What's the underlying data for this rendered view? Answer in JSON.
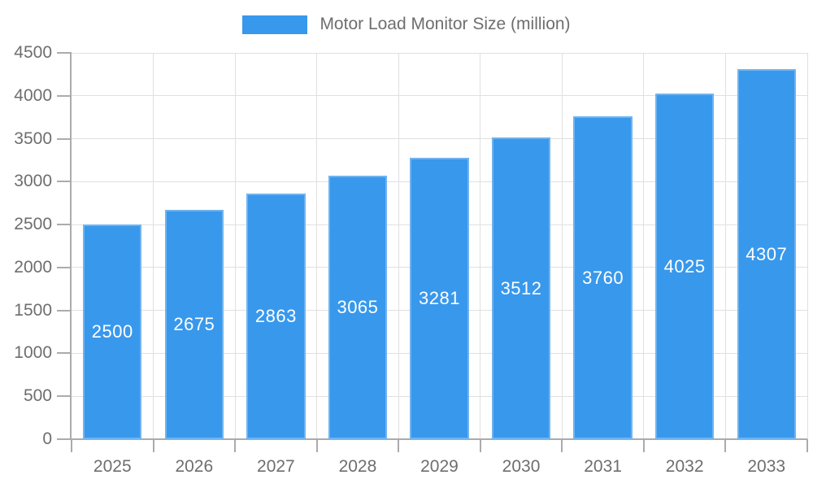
{
  "legend": {
    "label": "Motor Load Monitor Size (million)",
    "swatch_color": "#3898EC"
  },
  "chart_data": {
    "type": "bar",
    "title": "Motor Load Monitor Size (million)",
    "categories": [
      "2025",
      "2026",
      "2027",
      "2028",
      "2029",
      "2030",
      "2031",
      "2032",
      "2033"
    ],
    "series": [
      {
        "name": "Motor Load Monitor Size (million)",
        "values": [
          2500,
          2675,
          2863,
          3065,
          3281,
          3512,
          3760,
          4025,
          4307
        ]
      }
    ],
    "value_labels_shown": true,
    "xlabel": "",
    "ylabel": "",
    "ylim": [
      0,
      4500
    ],
    "yticks": [
      0,
      500,
      1000,
      1500,
      2000,
      2500,
      3000,
      3500,
      4000,
      4500
    ],
    "grid": true,
    "legend_position": "top",
    "colors": {
      "bar_fill": "#3898EC",
      "bar_edge_highlight": "rgba(255,255,255,0.28)",
      "value_label_text": "#FFFFFF",
      "axis_text": "#6E6E6E",
      "grid_line": "#E0E0E0",
      "axis_line": "#ABABAB"
    }
  }
}
